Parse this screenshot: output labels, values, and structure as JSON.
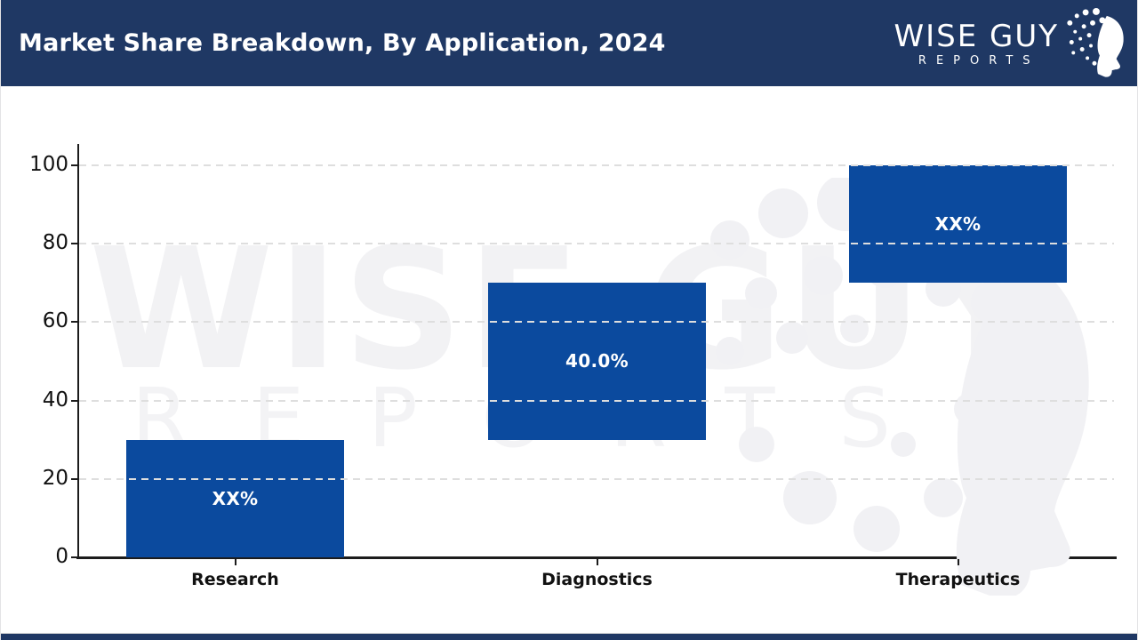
{
  "header": {
    "title": "Market Share Breakdown, By Application, 2024",
    "logo": {
      "line1": "WISE GUY",
      "line2": "REPORTS"
    }
  },
  "watermark": {
    "line1": "WISE GUY",
    "line2": "REPORTS"
  },
  "chart_data": {
    "type": "bar",
    "subtype": "floating-waterfall-bars",
    "title": "Market Share Breakdown, By Application, 2024",
    "categories": [
      "Research",
      "Diagnostics",
      "Therapeutics"
    ],
    "segments": [
      {
        "category": "Research",
        "start": 0,
        "end": 30,
        "label": "XX%"
      },
      {
        "category": "Diagnostics",
        "start": 30,
        "end": 70,
        "label": "40.0%"
      },
      {
        "category": "Therapeutics",
        "start": 70,
        "end": 100,
        "label": "XX%"
      }
    ],
    "yticks": [
      0,
      20,
      40,
      60,
      80,
      100
    ],
    "ylim": [
      0,
      100
    ],
    "xlabel": "",
    "ylabel": "",
    "grid": "horizontal-dashed",
    "legend": "none"
  },
  "colors": {
    "header_bg": "#1f3864",
    "footer_bg": "#1f3864",
    "bar": "#0b4a9e",
    "bar_label": "#ffffff",
    "gridline": "#dedede",
    "axis": "#1c1c1c",
    "tick_text": "#111111",
    "watermark": "#f2f2f4"
  }
}
